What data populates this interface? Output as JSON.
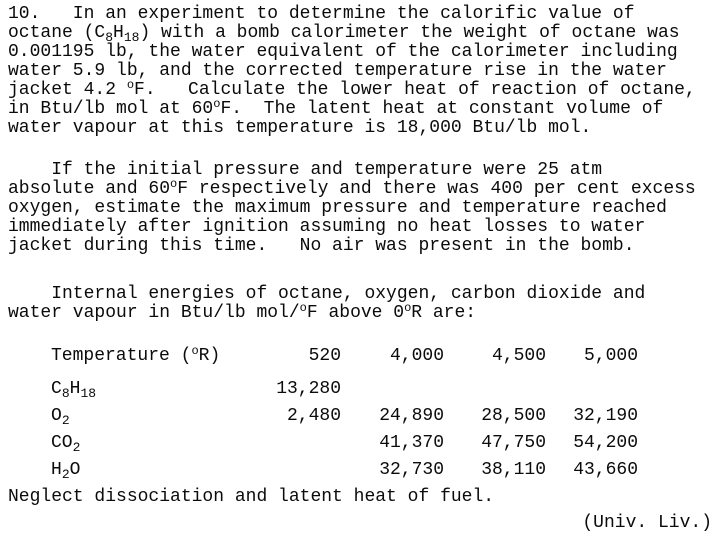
{
  "problem": {
    "number": "10.",
    "paragraph1": {
      "lines": [
        [
          {
            "t": "10.   In an experiment to determine the calorific value of"
          }
        ],
        [
          {
            "t": "octane (C"
          },
          {
            "sub": "8"
          },
          {
            "t": "H"
          },
          {
            "sub": "18"
          },
          {
            "t": ") with a bomb calorimeter the weight of octane was"
          }
        ],
        [
          {
            "t": "0.001195 lb, the water equivalent of the calorimeter including"
          }
        ],
        [
          {
            "t": "water 5.9 lb, and the corrected temperature rise in the water"
          }
        ],
        [
          {
            "t": "jacket 4.2 "
          },
          {
            "sup": "o"
          },
          {
            "t": "F.   Calculate the lower heat of reaction of octane,"
          }
        ],
        [
          {
            "t": "in Btu/lb mol at 60"
          },
          {
            "sup": "o"
          },
          {
            "t": "F.  The latent heat at constant volume of"
          }
        ],
        [
          {
            "t": "water vapour at this temperature is 18,000 Btu/lb mol."
          }
        ]
      ]
    },
    "paragraph2": {
      "lines": [
        [
          {
            "t": "    If the initial pressure and temperature were 25 atm"
          }
        ],
        [
          {
            "t": "absolute and 60"
          },
          {
            "sup": "o"
          },
          {
            "t": "F respectively and there was 400 per cent excess"
          }
        ],
        [
          {
            "t": "oxygen, estimate the maximum pressure and temperature reached"
          }
        ],
        [
          {
            "t": "immediately after ignition assuming no heat losses to water"
          }
        ],
        [
          {
            "t": "jacket during this time.   No air was present in the bomb."
          }
        ]
      ]
    },
    "paragraph3": {
      "lines": [
        [
          {
            "t": "    Internal energies of octane, oxygen, carbon dioxide and"
          }
        ],
        [
          {
            "t": "water vapour in Btu/lb mol/"
          },
          {
            "sup": "o"
          },
          {
            "t": "F above 0"
          },
          {
            "sup": "o"
          },
          {
            "t": "R are:"
          }
        ]
      ]
    },
    "table": {
      "header": {
        "label_segments": [
          {
            "t": "Temperature ("
          },
          {
            "sup": "o"
          },
          {
            "t": "R)"
          }
        ],
        "values": [
          "520",
          "4,000",
          "4,500",
          "5,000"
        ]
      },
      "rows": [
        {
          "label": [
            {
              "t": "C"
            },
            {
              "sub": "8"
            },
            {
              "t": "H"
            },
            {
              "sub": "1"
            },
            {
              "sub": "8"
            }
          ],
          "values": [
            "13,280",
            "",
            "",
            ""
          ]
        },
        {
          "label": [
            {
              "t": "O"
            },
            {
              "sub": "2"
            }
          ],
          "values": [
            "2,480",
            "24,890",
            "28,500",
            "32,190"
          ]
        },
        {
          "label": [
            {
              "t": "CO"
            },
            {
              "sub": "2"
            }
          ],
          "values": [
            "",
            "41,370",
            "47,750",
            "54,200"
          ]
        },
        {
          "label": [
            {
              "t": "H"
            },
            {
              "sub": "2"
            },
            {
              "t": "O"
            }
          ],
          "values": [
            "",
            "32,730",
            "38,110",
            "43,660"
          ]
        }
      ]
    },
    "note": [
      {
        "t": "Neglect dissociation and latent heat of fuel."
      }
    ],
    "attribution": [
      {
        "t": "(Univ. Liv.)"
      }
    ]
  }
}
